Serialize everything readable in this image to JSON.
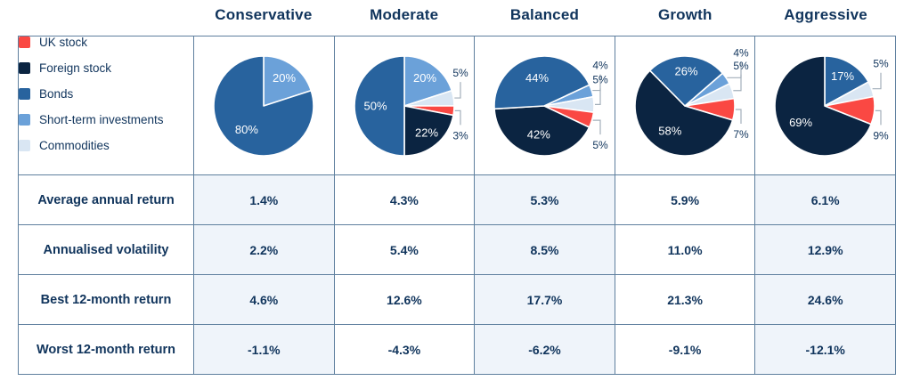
{
  "columns": [
    "Conservative",
    "Moderate",
    "Balanced",
    "Growth",
    "Aggressive"
  ],
  "colors": {
    "text_navy": "#10345C",
    "grid_border": "#5E7F9E",
    "tinted_cell": "#EFF4FA",
    "callout_line": "#A3AFBA"
  },
  "chart_data": {
    "type": "pie",
    "unit": "%",
    "legend_position": "left",
    "legend": [
      {
        "label": "UK stock",
        "color": "#FA4843"
      },
      {
        "label": "Foreign stock",
        "color": "#0B2441"
      },
      {
        "label": "Bonds",
        "color": "#28639E"
      },
      {
        "label": "Short-term investments",
        "color": "#6BA1D9"
      },
      {
        "label": "Commodities",
        "color": "#D9E6F3"
      }
    ],
    "pies": [
      {
        "name": "Conservative",
        "rotation": 0,
        "slices": [
          {
            "asset": "Short-term investments",
            "value": 20,
            "label": "20%",
            "placement": "inside"
          },
          {
            "asset": "Bonds",
            "value": 80,
            "label": "80%",
            "placement": "inside"
          }
        ]
      },
      {
        "name": "Moderate",
        "rotation": 0,
        "slices": [
          {
            "asset": "Short-term investments",
            "value": 20,
            "label": "20%",
            "placement": "inside"
          },
          {
            "asset": "Commodities",
            "value": 5,
            "label": "5%",
            "placement": "callout"
          },
          {
            "asset": "UK stock",
            "value": 3,
            "label": "3%",
            "placement": "callout"
          },
          {
            "asset": "Foreign stock",
            "value": 22,
            "label": "22%",
            "placement": "inside"
          },
          {
            "asset": "Bonds",
            "value": 50,
            "label": "50%",
            "placement": "inside"
          }
        ]
      },
      {
        "name": "Balanced",
        "rotation": 65,
        "slices": [
          {
            "asset": "Short-term investments",
            "value": 4,
            "label": "4%",
            "placement": "callout"
          },
          {
            "asset": "Commodities",
            "value": 5,
            "label": "5%",
            "placement": "callout"
          },
          {
            "asset": "UK stock",
            "value": 5,
            "label": "5%",
            "placement": "callout"
          },
          {
            "asset": "Foreign stock",
            "value": 42,
            "label": "42%",
            "placement": "inside"
          },
          {
            "asset": "Bonds",
            "value": 44,
            "label": "44%",
            "placement": "inside"
          }
        ]
      },
      {
        "name": "Growth",
        "rotation": 49,
        "slices": [
          {
            "asset": "Short-term investments",
            "value": 4,
            "label": "4%",
            "placement": "callout"
          },
          {
            "asset": "Commodities",
            "value": 5,
            "label": "5%",
            "placement": "callout"
          },
          {
            "asset": "UK stock",
            "value": 7,
            "label": "7%",
            "placement": "callout"
          },
          {
            "asset": "Foreign stock",
            "value": 58,
            "label": "58%",
            "placement": "inside"
          },
          {
            "asset": "Bonds",
            "value": 26,
            "label": "26%",
            "placement": "inside"
          }
        ]
      },
      {
        "name": "Aggressive",
        "rotation": 0,
        "slices": [
          {
            "asset": "Bonds",
            "value": 17,
            "label": "17%",
            "placement": "inside"
          },
          {
            "asset": "Commodities",
            "value": 5,
            "label": "5%",
            "placement": "callout"
          },
          {
            "asset": "UK stock",
            "value": 9,
            "label": "9%",
            "placement": "callout"
          },
          {
            "asset": "Foreign stock",
            "value": 69,
            "label": "69%",
            "placement": "inside"
          }
        ]
      }
    ]
  },
  "table": {
    "row_labels": [
      "Average annual return",
      "Annualised volatility",
      "Best 12-month return",
      "Worst 12-month return"
    ],
    "rows": [
      [
        "1.4%",
        "4.3%",
        "5.3%",
        "5.9%",
        "6.1%"
      ],
      [
        "2.2%",
        "5.4%",
        "8.5%",
        "11.0%",
        "12.9%"
      ],
      [
        "4.6%",
        "12.6%",
        "17.7%",
        "21.3%",
        "24.6%"
      ],
      [
        "-1.1%",
        "-4.3%",
        "-6.2%",
        "-9.1%",
        "-12.1%"
      ]
    ]
  }
}
